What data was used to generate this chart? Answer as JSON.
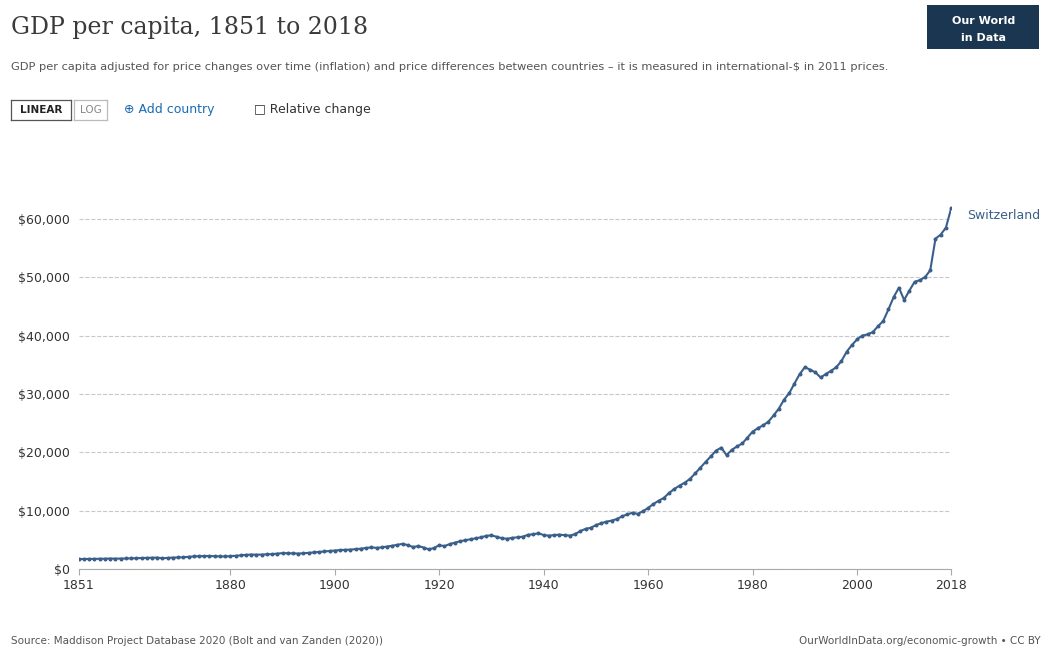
{
  "title": "GDP per capita, 1851 to 2018",
  "subtitle": "GDP per capita adjusted for price changes over time (inflation) and price differences between countries – it is measured in international-$ in 2011 prices.",
  "source_left": "Source: Maddison Project Database 2020 (Bolt and van Zanden (2020))",
  "source_right": "OurWorldInData.org/economic-growth • CC BY",
  "country_label": "Switzerland",
  "line_color": "#3a5f8a",
  "background_color": "#ffffff",
  "grid_color": "#c8c8c8",
  "xlim": [
    1851,
    2018
  ],
  "ylim": [
    0,
    65000
  ],
  "yticks": [
    0,
    10000,
    20000,
    30000,
    40000,
    50000,
    60000
  ],
  "xticks": [
    1851,
    1880,
    1900,
    1920,
    1940,
    1960,
    1980,
    2000,
    2018
  ],
  "years": [
    1851,
    1852,
    1853,
    1854,
    1855,
    1856,
    1857,
    1858,
    1859,
    1860,
    1861,
    1862,
    1863,
    1864,
    1865,
    1866,
    1867,
    1868,
    1869,
    1870,
    1871,
    1872,
    1873,
    1874,
    1875,
    1876,
    1877,
    1878,
    1879,
    1880,
    1881,
    1882,
    1883,
    1884,
    1885,
    1886,
    1887,
    1888,
    1889,
    1890,
    1891,
    1892,
    1893,
    1894,
    1895,
    1896,
    1897,
    1898,
    1899,
    1900,
    1901,
    1902,
    1903,
    1904,
    1905,
    1906,
    1907,
    1908,
    1909,
    1910,
    1911,
    1912,
    1913,
    1914,
    1915,
    1916,
    1917,
    1918,
    1919,
    1920,
    1921,
    1922,
    1923,
    1924,
    1925,
    1926,
    1927,
    1928,
    1929,
    1930,
    1931,
    1932,
    1933,
    1934,
    1935,
    1936,
    1937,
    1938,
    1939,
    1940,
    1941,
    1942,
    1943,
    1944,
    1945,
    1946,
    1947,
    1948,
    1949,
    1950,
    1951,
    1952,
    1953,
    1954,
    1955,
    1956,
    1957,
    1958,
    1959,
    1960,
    1961,
    1962,
    1963,
    1964,
    1965,
    1966,
    1967,
    1968,
    1969,
    1970,
    1971,
    1972,
    1973,
    1974,
    1975,
    1976,
    1977,
    1978,
    1979,
    1980,
    1981,
    1982,
    1983,
    1984,
    1985,
    1986,
    1987,
    1988,
    1989,
    1990,
    1991,
    1992,
    1993,
    1994,
    1995,
    1996,
    1997,
    1998,
    1999,
    2000,
    2001,
    2002,
    2003,
    2004,
    2005,
    2006,
    2007,
    2008,
    2009,
    2010,
    2011,
    2012,
    2013,
    2014,
    2015,
    2016,
    2017,
    2018
  ],
  "values": [
    1700,
    1710,
    1730,
    1720,
    1730,
    1760,
    1790,
    1770,
    1780,
    1800,
    1820,
    1850,
    1880,
    1900,
    1930,
    1950,
    1840,
    1900,
    1950,
    1980,
    2010,
    2090,
    2150,
    2200,
    2220,
    2230,
    2180,
    2170,
    2140,
    2210,
    2260,
    2340,
    2420,
    2470,
    2450,
    2470,
    2510,
    2550,
    2640,
    2720,
    2700,
    2680,
    2640,
    2700,
    2760,
    2840,
    2920,
    3010,
    3090,
    3160,
    3240,
    3280,
    3320,
    3400,
    3480,
    3600,
    3700,
    3620,
    3710,
    3840,
    3980,
    4140,
    4310,
    4080,
    3760,
    3930,
    3680,
    3360,
    3600,
    4080,
    3920,
    4260,
    4510,
    4760,
    4930,
    5090,
    5260,
    5430,
    5680,
    5760,
    5510,
    5270,
    5180,
    5340,
    5430,
    5540,
    5860,
    5950,
    6120,
    5800,
    5720,
    5810,
    5890,
    5790,
    5720,
    5970,
    6480,
    6880,
    7060,
    7510,
    7840,
    8110,
    8290,
    8560,
    9020,
    9360,
    9640,
    9440,
    9890,
    10470,
    11140,
    11690,
    12180,
    13030,
    13700,
    14290,
    14790,
    15440,
    16380,
    17380,
    18360,
    19300,
    20290,
    20800,
    19500,
    20420,
    20990,
    21510,
    22500,
    23550,
    24120,
    24620,
    25230,
    26310,
    27470,
    29000,
    30130,
    31780,
    33390,
    34590,
    34150,
    33700,
    32820,
    33390,
    33960,
    34560,
    35640,
    37230,
    38380,
    39350,
    40000,
    40200,
    40600,
    41600,
    42500,
    44500,
    46600,
    48200,
    46100,
    47700,
    49200,
    49500,
    50000,
    51200,
    56600,
    57300,
    58500,
    61800
  ]
}
